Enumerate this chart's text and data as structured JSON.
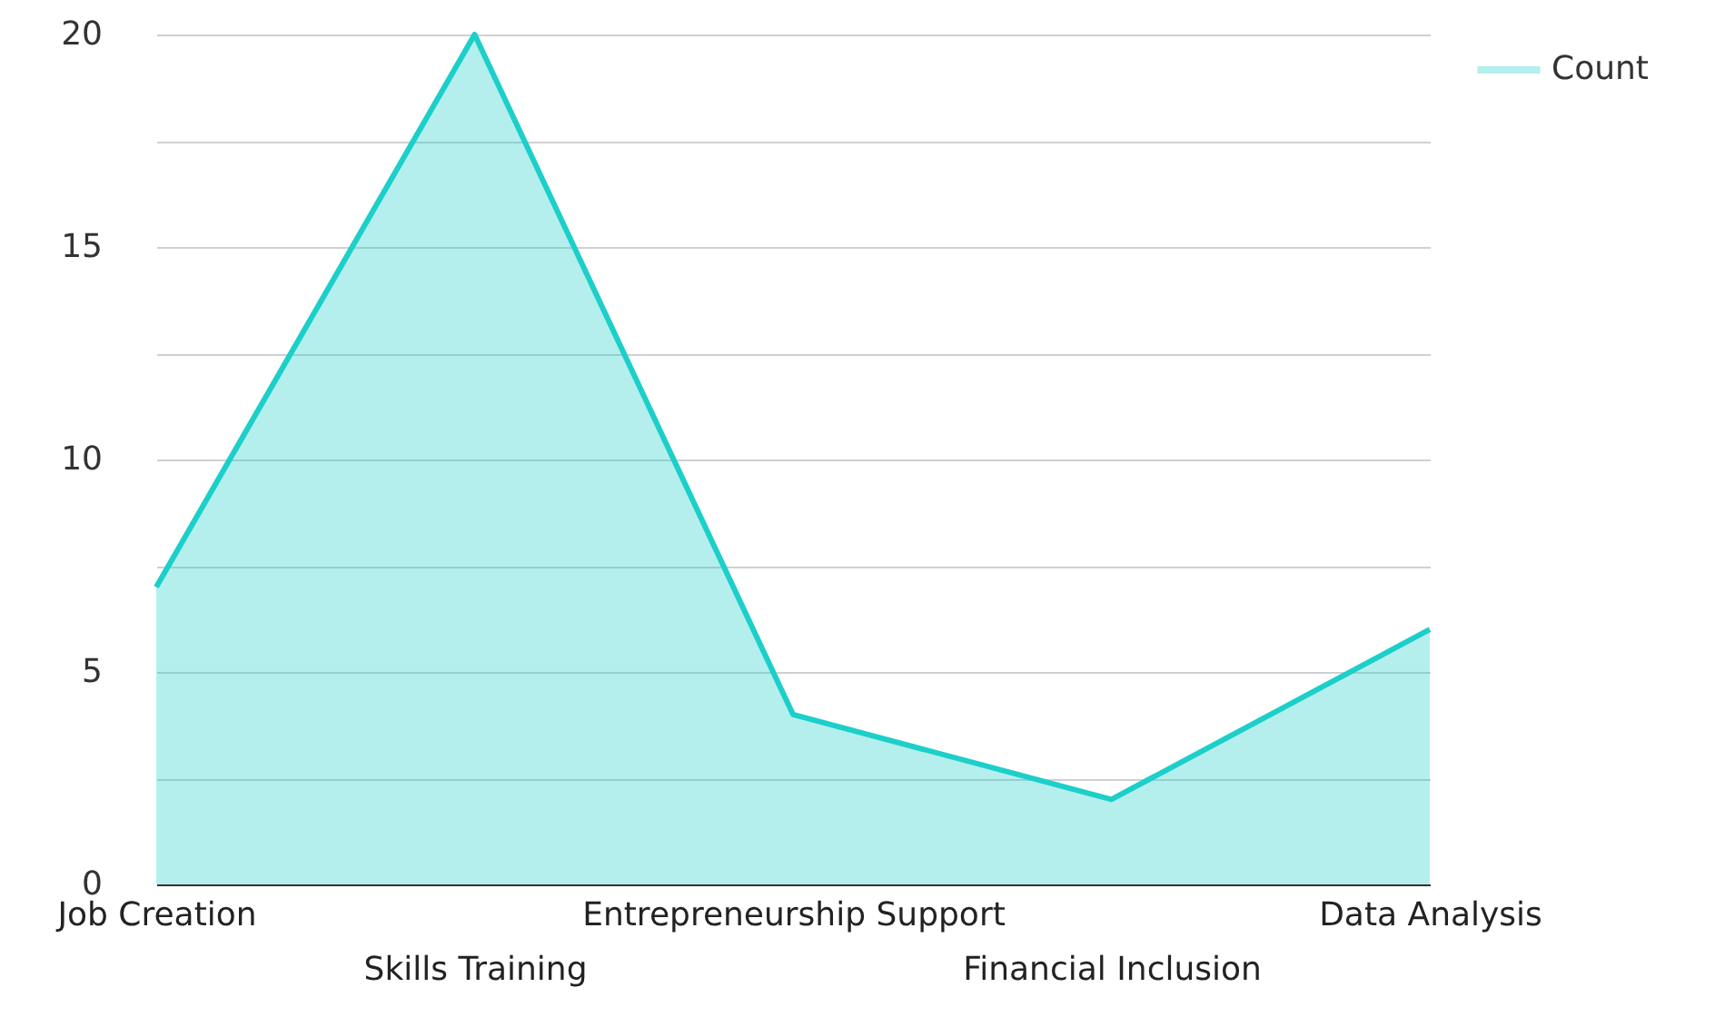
{
  "chart_data": {
    "type": "area",
    "categories": [
      "Job Creation",
      "Skills Training",
      "Entrepreneurship Support",
      "Financial Inclusion",
      "Data Analysis"
    ],
    "series": [
      {
        "name": "Count",
        "color": "#1ccfc9",
        "values": [
          7,
          20,
          4,
          2,
          6
        ]
      }
    ],
    "ylim": [
      0,
      20
    ],
    "yticks": [
      0,
      {
        "value": 2.5,
        "label": null
      },
      5,
      {
        "value": 7.5,
        "label": null
      },
      10,
      {
        "value": 12.5,
        "label": null
      },
      15,
      {
        "value": 17.5,
        "label": null
      },
      20
    ],
    "grid": "y",
    "legend": "top right"
  }
}
